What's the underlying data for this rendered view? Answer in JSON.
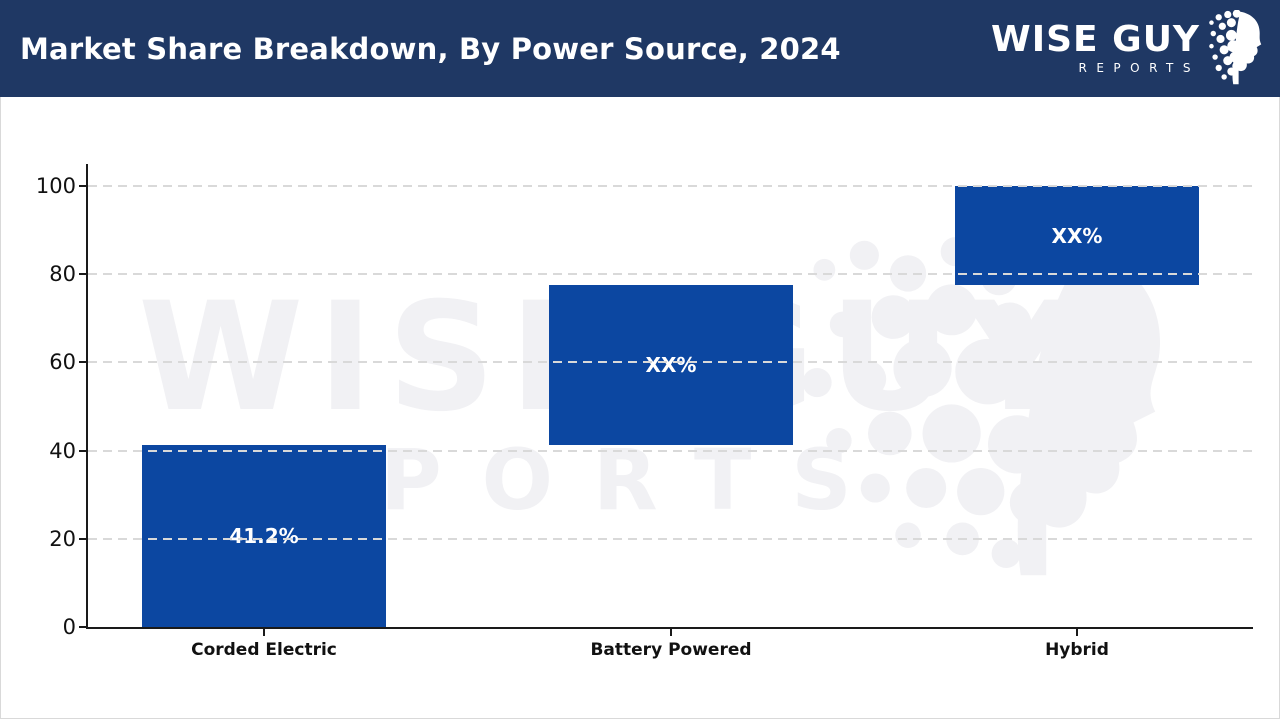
{
  "header": {
    "title": "Market Share Breakdown, By Power Source, 2024",
    "background_color": "#1f3864",
    "logo": {
      "wordmark": "WISE GUY",
      "subtext": "REPORTS",
      "icon": "face-profile-dots-icon",
      "color": "#ffffff"
    }
  },
  "watermark": {
    "line1": "WISE GUY",
    "line2": "REPORTS",
    "icon": "face-profile-dots-icon",
    "color": "#f1f1f4"
  },
  "chart_data": {
    "type": "bar",
    "subtype": "segmented-cumulative",
    "title": "Market Share Breakdown, By Power Source, 2024",
    "categories": [
      "Corded Electric",
      "Battery Powered",
      "Hybrid"
    ],
    "segments": [
      {
        "category": "Corded Electric",
        "start": 0,
        "end": 41.2,
        "label": "41.2%"
      },
      {
        "category": "Battery Powered",
        "start": 41.2,
        "end": 77.5,
        "label": "XX%"
      },
      {
        "category": "Hybrid",
        "start": 77.5,
        "end": 100,
        "label": "XX%"
      }
    ],
    "xlabel": "",
    "ylabel": "",
    "ylim": [
      0,
      100
    ],
    "yticks": [
      0,
      20,
      40,
      60,
      80,
      100
    ],
    "grid": "horizontal-dashed",
    "grid_above_bars": true,
    "legend": "none",
    "bar_color": "#0c47a1",
    "bar_label_color": "#ffffff",
    "axis_color": "#1a1a1a",
    "gridline_color": "#d9d9d9"
  }
}
